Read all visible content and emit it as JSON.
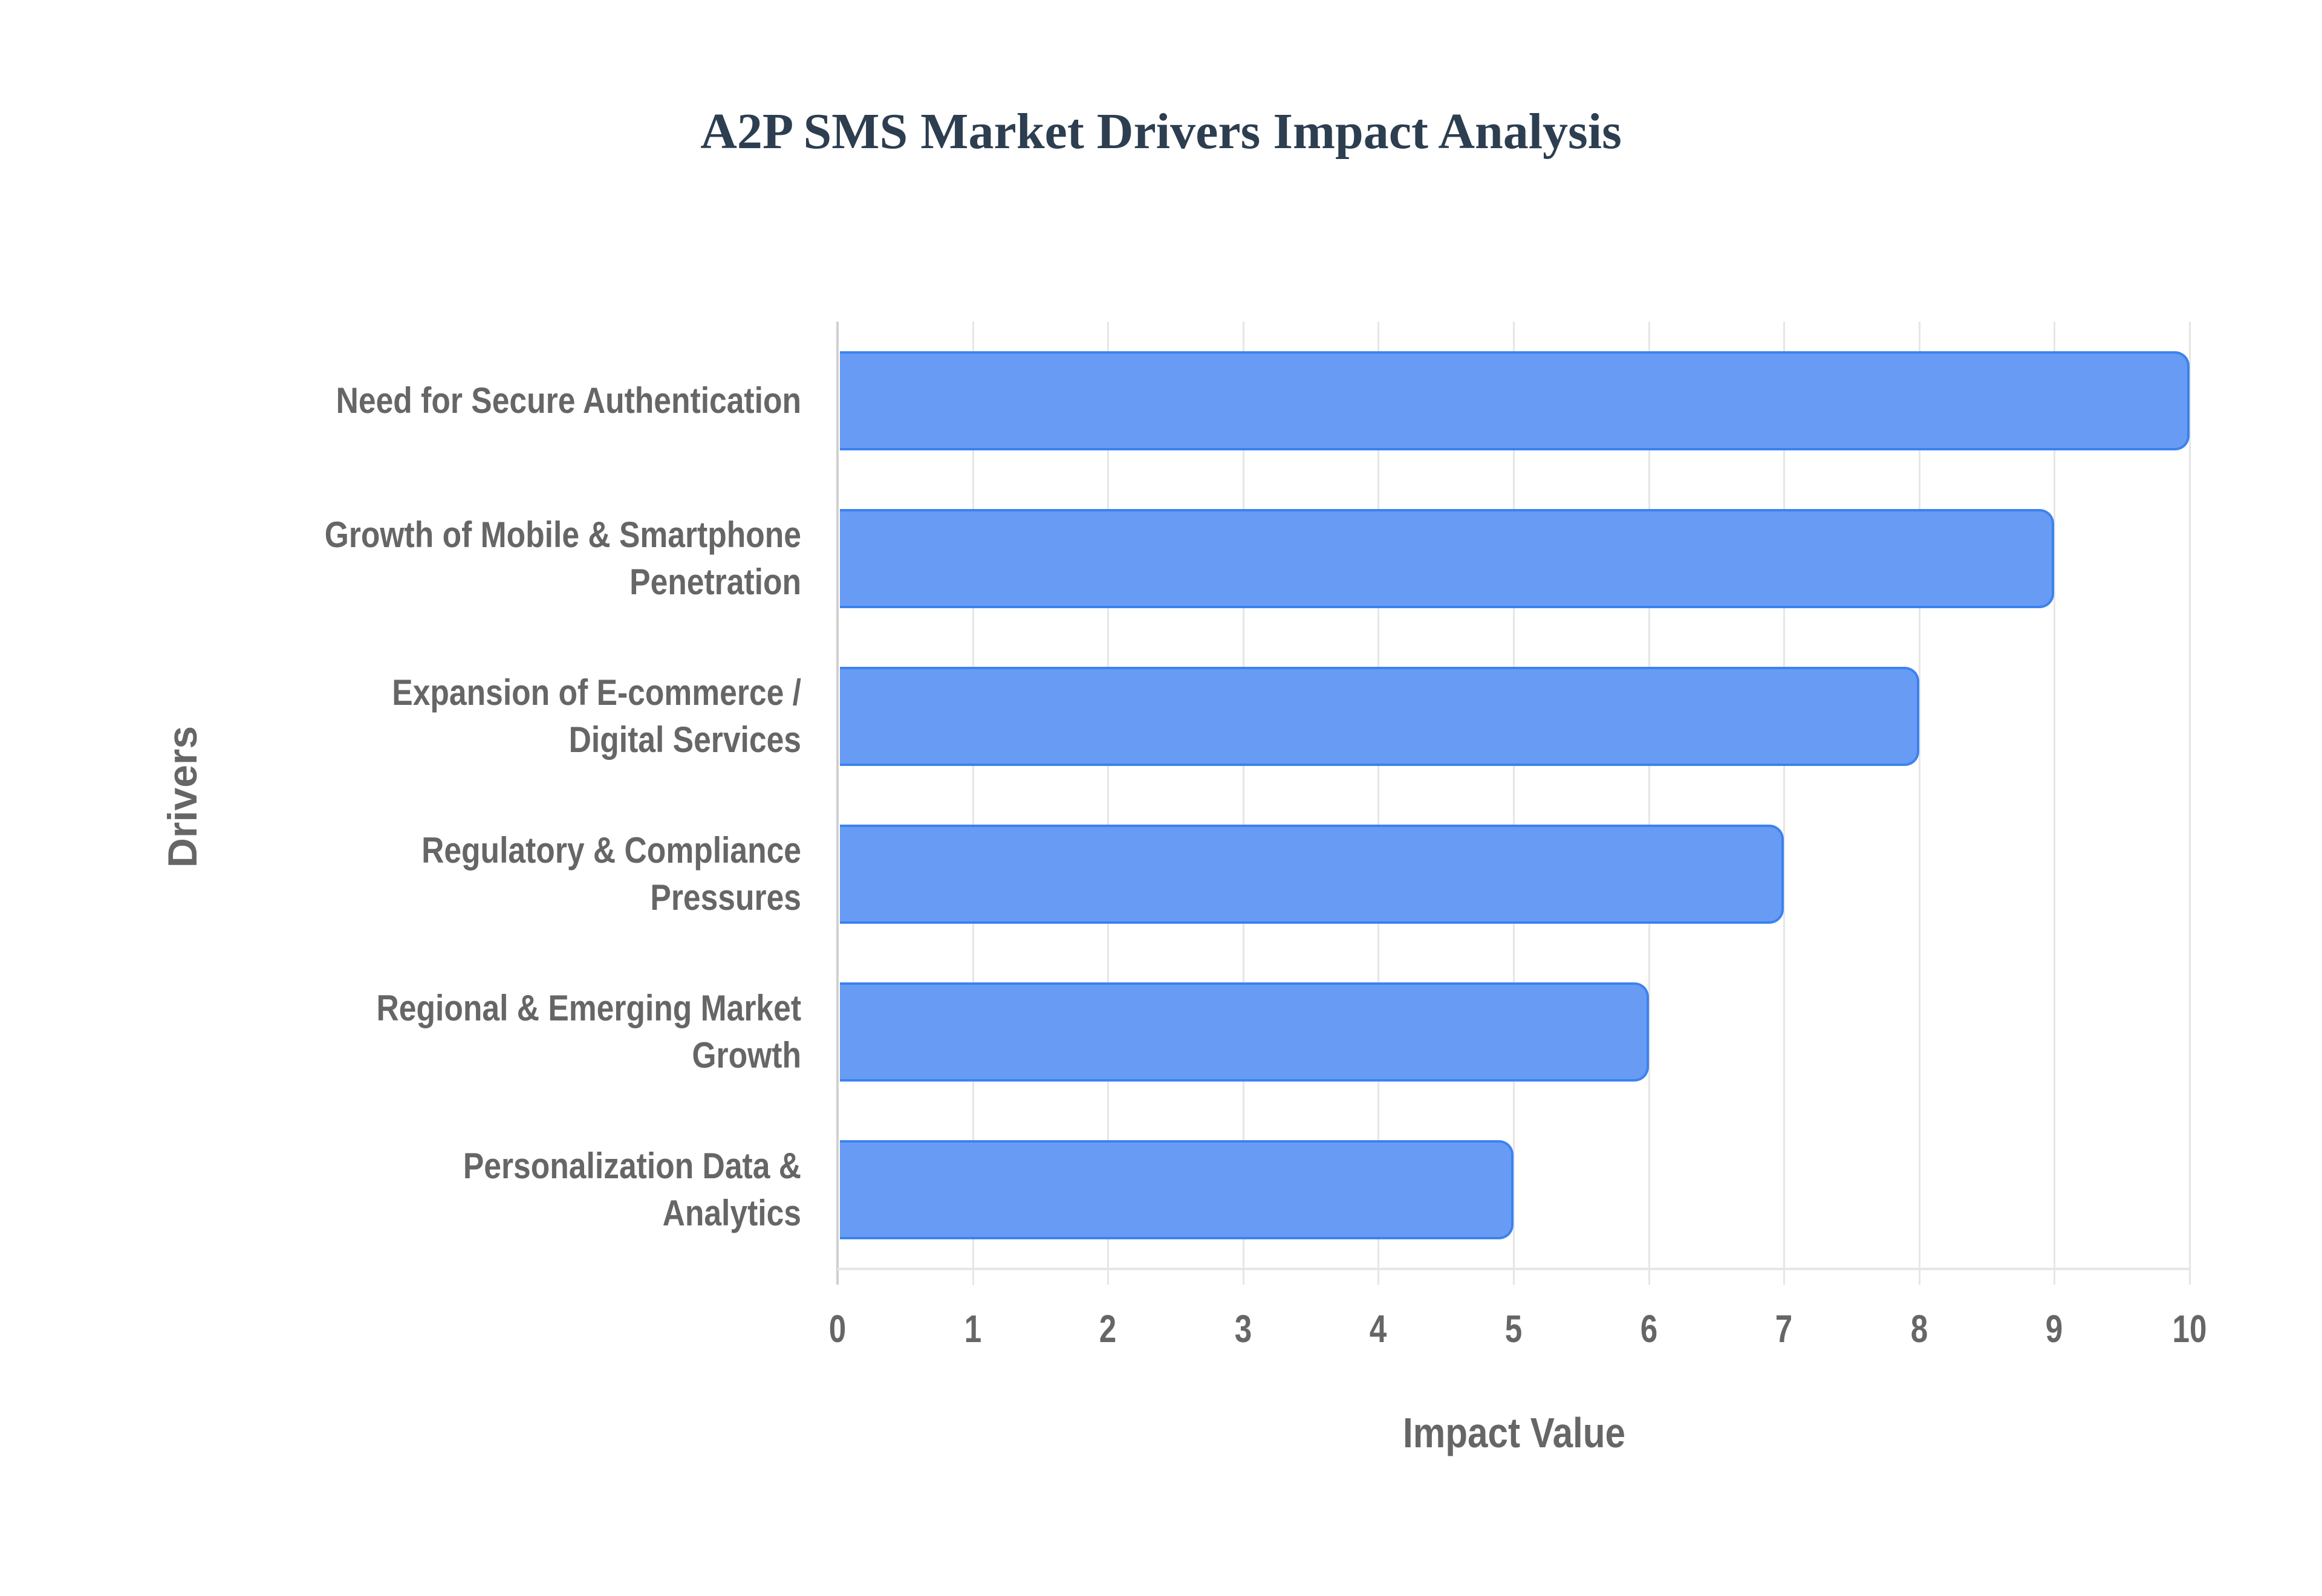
{
  "title": "A2P SMS Market Drivers Impact Analysis",
  "x_axis": {
    "title": "Impact Value",
    "ticks": [
      "0",
      "1",
      "2",
      "3",
      "4",
      "5",
      "6",
      "7",
      "8",
      "9",
      "10"
    ]
  },
  "y_axis": {
    "title": "Drivers"
  },
  "colors": {
    "bar_fill": "#6399F4",
    "bar_border": "#3B82F0",
    "title": "#2C3E50",
    "axis_text": "#666666",
    "grid": "#E6E6E6"
  },
  "categories": [
    {
      "lines": [
        "Need for Secure Authentication"
      ],
      "value": 10
    },
    {
      "lines": [
        "Growth of Mobile & Smartphone",
        "Penetration"
      ],
      "value": 9
    },
    {
      "lines": [
        "Expansion of E-commerce /",
        "Digital Services"
      ],
      "value": 8
    },
    {
      "lines": [
        "Regulatory & Compliance",
        "Pressures"
      ],
      "value": 7
    },
    {
      "lines": [
        "Regional & Emerging Market",
        "Growth"
      ],
      "value": 6
    },
    {
      "lines": [
        "Personalization Data &",
        "Analytics"
      ],
      "value": 5
    }
  ],
  "chart_data": {
    "type": "bar",
    "orientation": "horizontal",
    "title": "A2P SMS Market Drivers Impact Analysis",
    "categories": [
      "Need for Secure Authentication",
      "Growth of Mobile & Smartphone Penetration",
      "Expansion of E-commerce / Digital Services",
      "Regulatory & Compliance Pressures",
      "Regional & Emerging Market Growth",
      "Personalization Data & Analytics"
    ],
    "values": [
      10,
      9,
      8,
      7,
      6,
      5
    ],
    "xlabel": "Impact Value",
    "ylabel": "Drivers",
    "xlim": [
      0,
      10
    ],
    "xticks": [
      0,
      1,
      2,
      3,
      4,
      5,
      6,
      7,
      8,
      9,
      10
    ],
    "grid": true,
    "legend": null
  }
}
